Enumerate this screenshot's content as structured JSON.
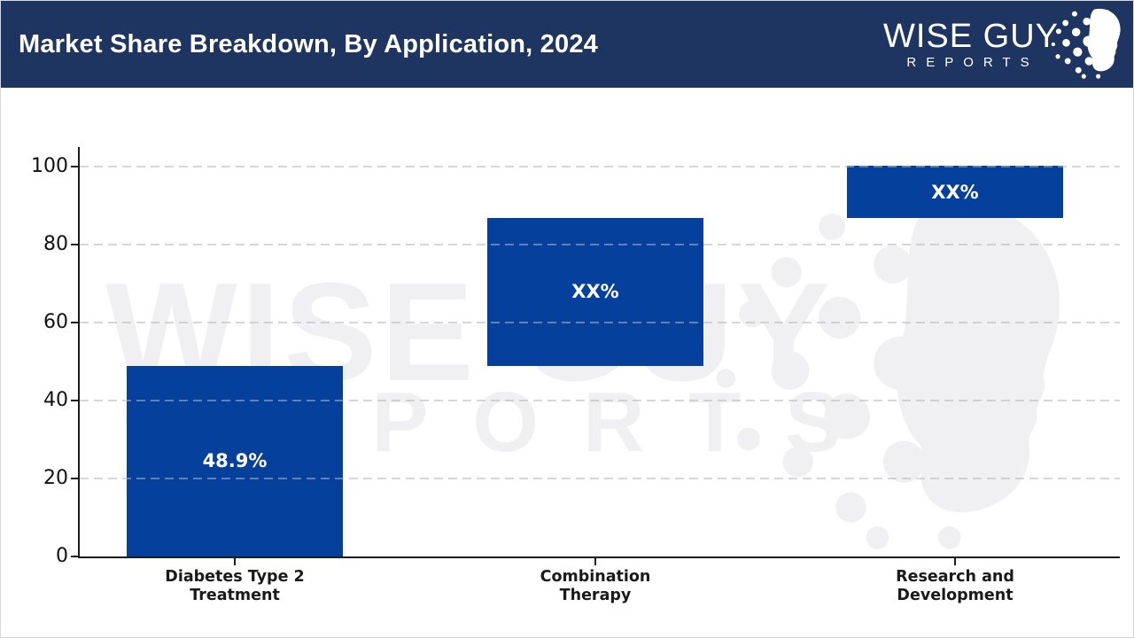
{
  "header": {
    "title": "Market Share Breakdown, By Application, 2024",
    "bg_color": "#1f3561",
    "logo": {
      "line1": "WISE GUY",
      "line2": "REPORTS"
    }
  },
  "watermark": {
    "line1": "WISE GUY",
    "line2": "REPORTS"
  },
  "chart_data": {
    "type": "bar",
    "subtype": "floating-waterfall",
    "title": "Market Share Breakdown, By Application, 2024",
    "categories": [
      "Diabetes Type 2 Treatment",
      "Combination Therapy",
      "Research and Development"
    ],
    "x_labels": [
      [
        "Diabetes Type 2",
        "Treatment"
      ],
      [
        "Combination",
        "Therapy"
      ],
      [
        "Research and",
        "Development"
      ]
    ],
    "segments": [
      {
        "category": "Diabetes Type 2 Treatment",
        "start": 0,
        "end": 48.9,
        "label": "48.9%"
      },
      {
        "category": "Combination Therapy",
        "start": 48.9,
        "end": 86.8,
        "label": "XX%"
      },
      {
        "category": "Research and Development",
        "start": 86.8,
        "end": 100.2,
        "label": "XX%"
      }
    ],
    "bar_labels": [
      "48.9%",
      "XX%",
      "XX%"
    ],
    "yticks": [
      0,
      20,
      40,
      60,
      80,
      100
    ],
    "ylim": [
      0,
      105
    ],
    "xlabel": "",
    "ylabel": "",
    "grid": "horizontal-dashed",
    "legend": "none",
    "bar_color": "#05419c",
    "bar_label_color": "#ffffff",
    "axis_color": "#1c1c1c"
  }
}
